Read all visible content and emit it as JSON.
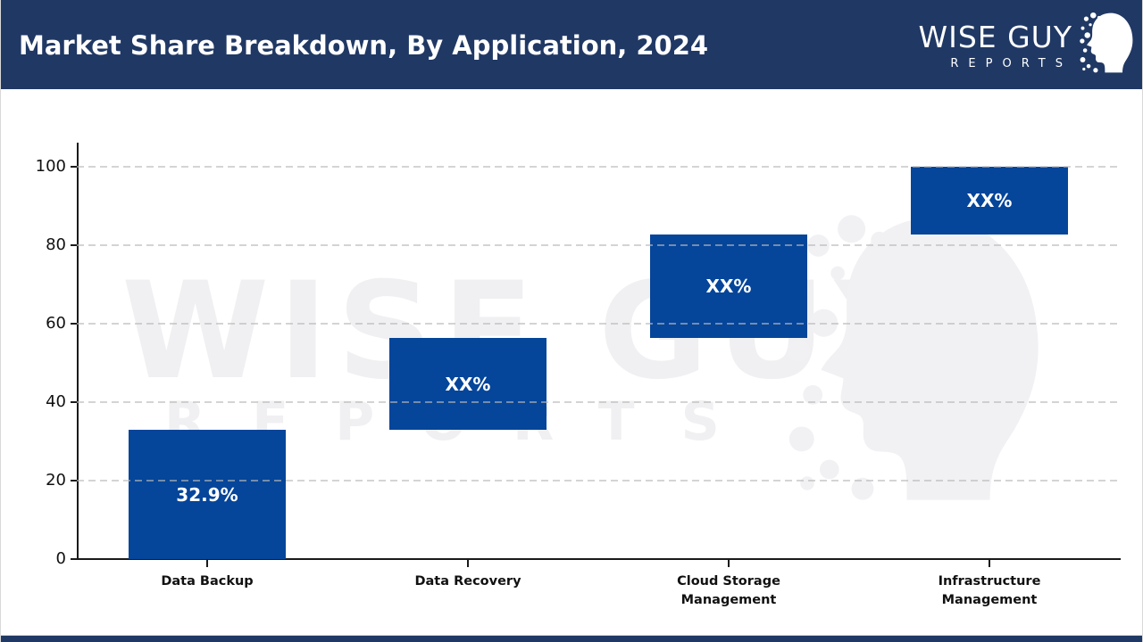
{
  "header": {
    "title": "Market Share Breakdown, By Application, 2024",
    "logo": {
      "line1": "WISE GUY",
      "line2": "REPORTS"
    }
  },
  "watermark": {
    "line1": "WISE GUY",
    "line2": "REPORTS"
  },
  "colors": {
    "header_bg": "#203864",
    "footer_bg": "#203864",
    "bar": "#05459a",
    "bar_label": "#ffffff",
    "axis": "#1a1a1a",
    "gridline": "#bdbdbd",
    "watermark": "#f0f0f2"
  },
  "chart_data": {
    "type": "bar",
    "subtype": "waterfall",
    "title": "Market Share Breakdown, By Application, 2024",
    "categories": [
      "Data Backup",
      "Data Recovery",
      "Cloud Storage Management",
      "Infrastructure Management"
    ],
    "tick_label_lines": [
      [
        "Data Backup"
      ],
      [
        "Data Recovery"
      ],
      [
        "Cloud Storage",
        "Management"
      ],
      [
        "Infrastructure",
        "Management"
      ]
    ],
    "segments": [
      {
        "category": "Data Backup",
        "start": 0,
        "end": 32.9,
        "label": "32.9%"
      },
      {
        "category": "Data Recovery",
        "start": 32.9,
        "end": 56.3,
        "label": "XX%"
      },
      {
        "category": "Cloud Storage Management",
        "start": 56.3,
        "end": 82.6,
        "label": "XX%"
      },
      {
        "category": "Infrastructure Management",
        "start": 82.6,
        "end": 100,
        "label": "XX%"
      }
    ],
    "ylim": [
      0,
      100
    ],
    "yticks": [
      0,
      20,
      40,
      60,
      80,
      100
    ],
    "xlabel": "",
    "ylabel": "",
    "grid": "horizontal-dashed-over-bars",
    "legend": "none"
  }
}
